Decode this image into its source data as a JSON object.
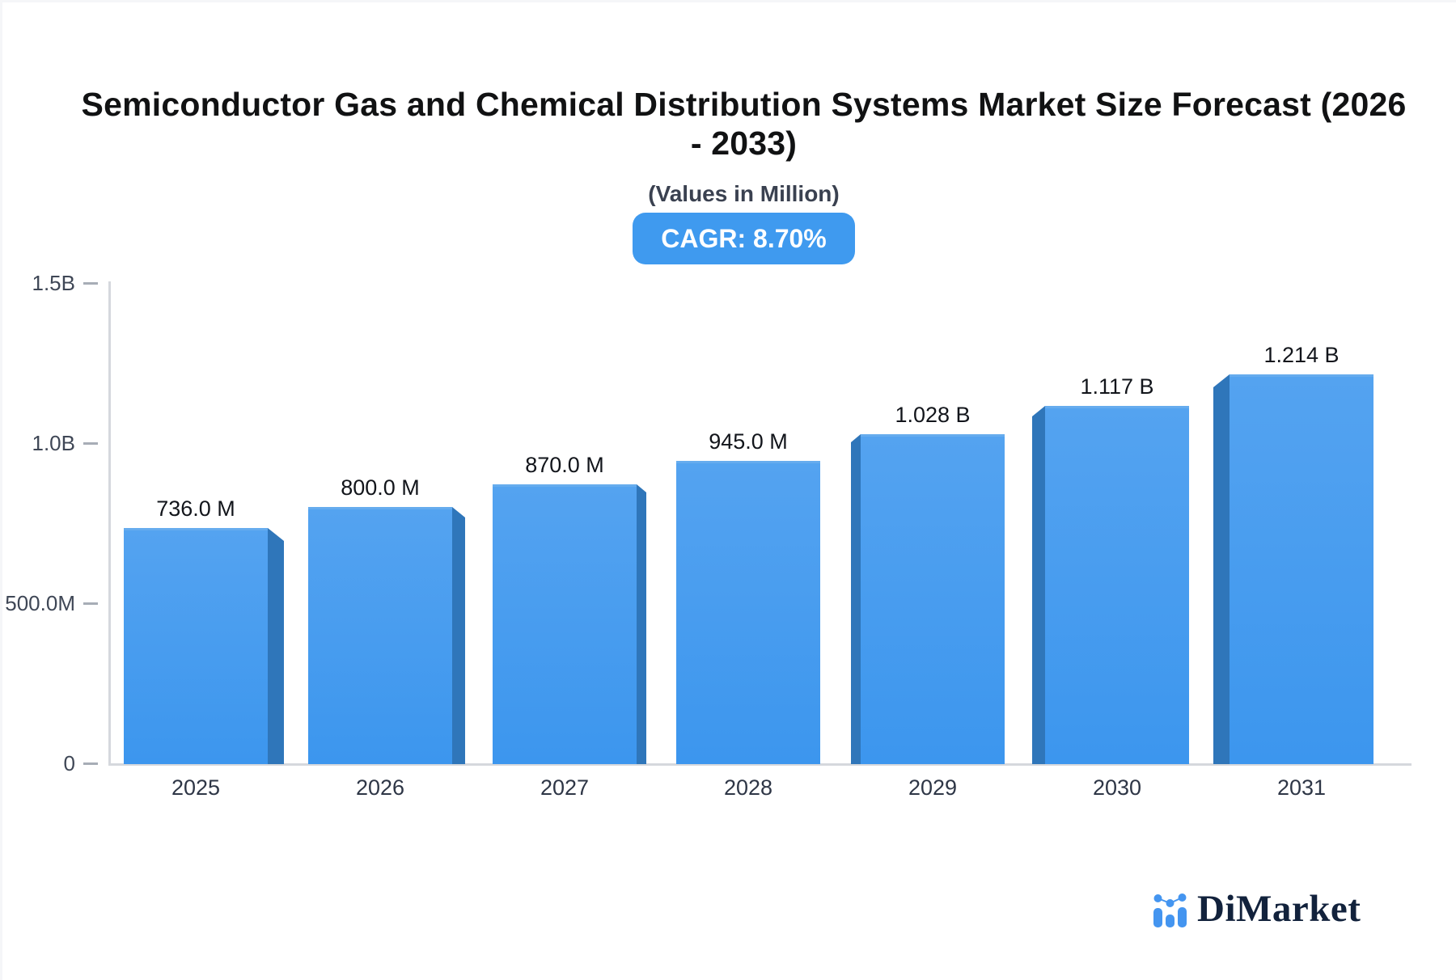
{
  "header": {
    "title_line1": "Semiconductor Gas and Chemical Distribution Systems Market Size Forecast (2026",
    "title_line2": "- 2033)",
    "subtitle": "(Values in Million)",
    "cagr_badge": "CAGR: 8.70%"
  },
  "chart_data": {
    "type": "bar",
    "title": "Semiconductor Gas and Chemical Distribution Systems Market Size Forecast (2026 - 2033)",
    "subtitle": "(Values in Million)",
    "cagr_label": "CAGR: 8.70%",
    "cagr_percent": 8.7,
    "categories": [
      "2025",
      "2026",
      "2027",
      "2028",
      "2029",
      "2030",
      "2031"
    ],
    "values_millions": [
      736,
      800,
      870,
      945,
      1028,
      1117,
      1214
    ],
    "bar_labels": [
      "736.0 M",
      "800.0 M",
      "870.0 M",
      "945.0 M",
      "1.028 B",
      "1.117 B",
      "1.214 B"
    ],
    "yticks": [
      {
        "label": "1.5B",
        "value_millions": 1500
      },
      {
        "label": "1.0B",
        "value_millions": 1000
      },
      {
        "label": "500.0M",
        "value_millions": 500
      },
      {
        "label": "0",
        "value_millions": 0
      }
    ],
    "ylim_millions": [
      0,
      1500
    ],
    "grid": false,
    "legend": null
  },
  "footer": {
    "logo_text": "DiMarket"
  },
  "colors": {
    "page_bg": "#FFFFFF",
    "accent": "#3F9AEF",
    "badge_bg": "#3F9AEF",
    "badge_text": "#FFFFFF",
    "bar_face_top": "#54A3F0",
    "bar_face_bottom": "#3C96EE",
    "bar_top_edge": "#66ACEE",
    "bar_side": "#2F76BA",
    "axis_line": "#D5D8DD",
    "tick": "#A7ADB6",
    "axis_label": "#3F4756",
    "x_label": "#2E3646",
    "value_label": "#12151B",
    "title": "#111213",
    "subtitle": "#3A4150",
    "logo_blue": "#4495F0",
    "logo_text": "#12223C"
  }
}
